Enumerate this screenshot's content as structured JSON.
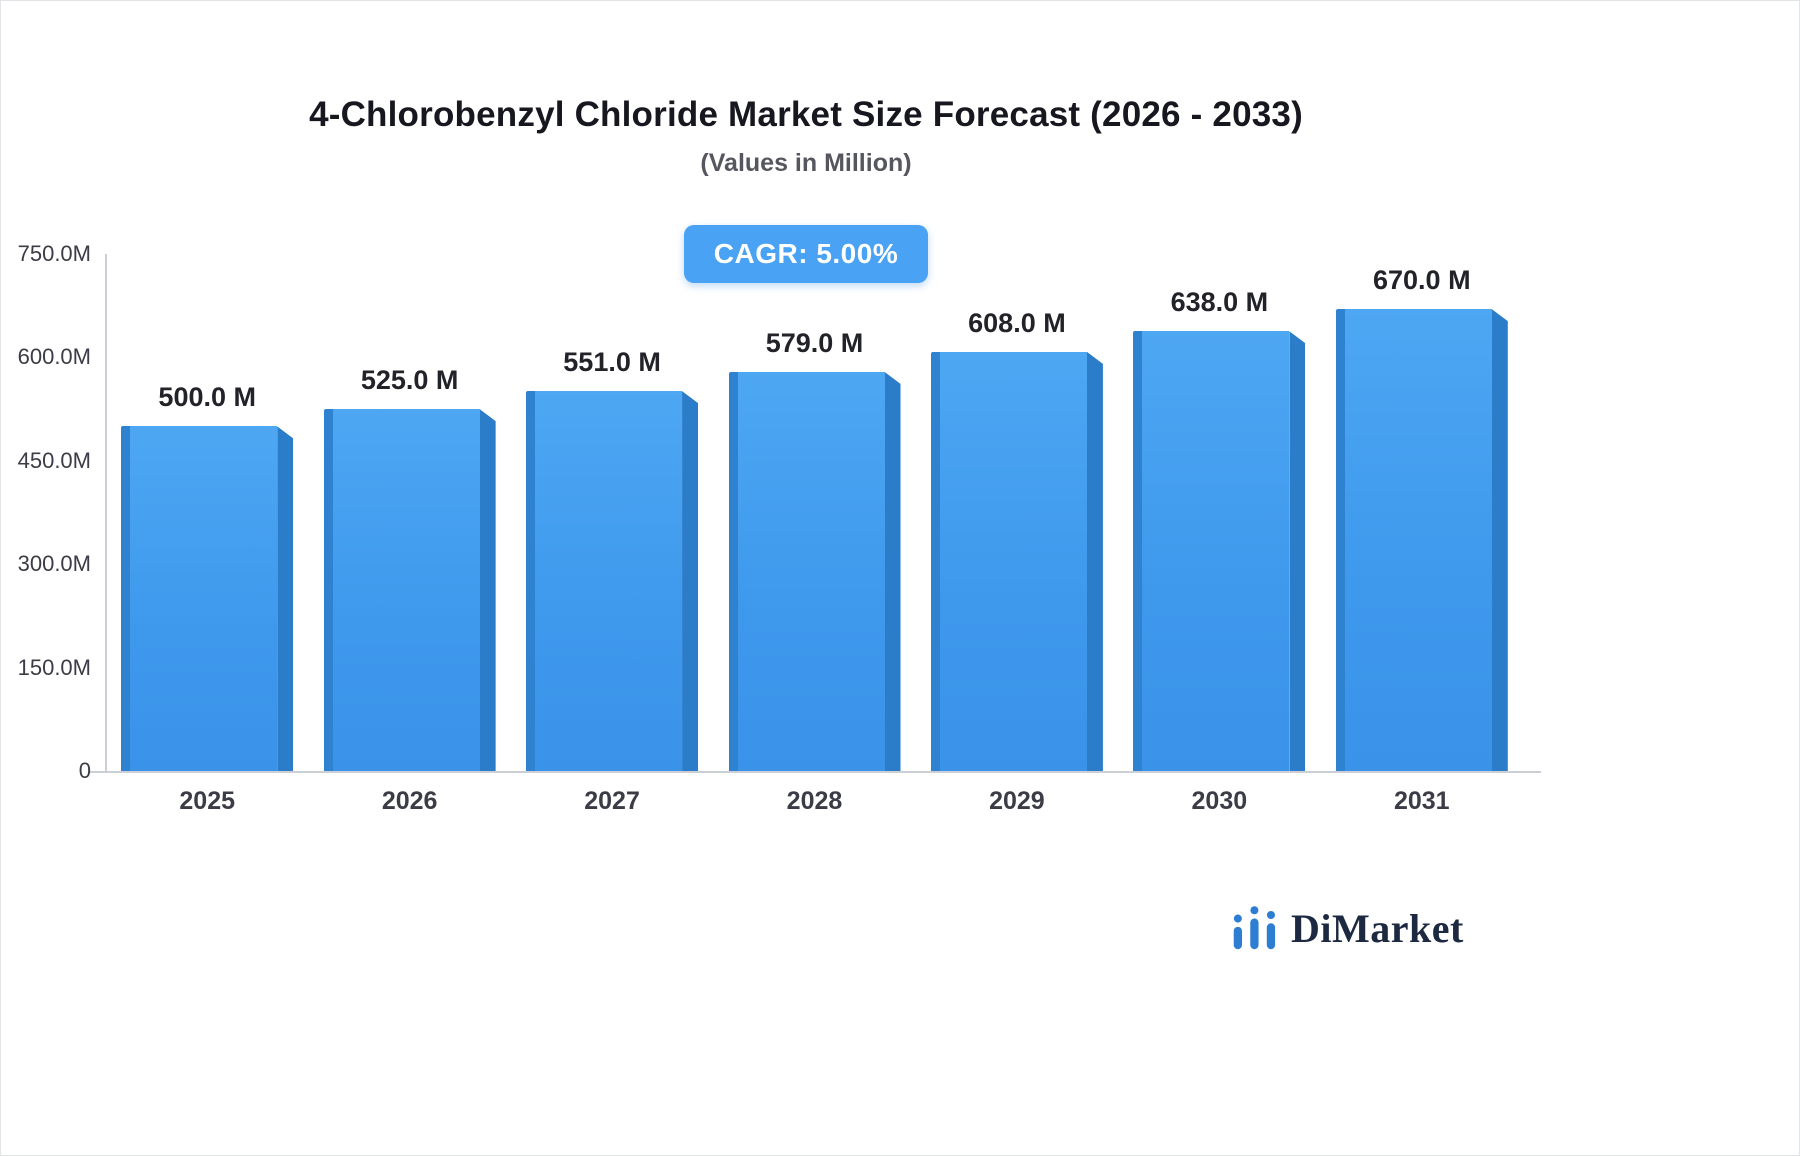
{
  "header": {
    "title": "4-Chlorobenzyl Chloride Market Size Forecast (2026 - 2033)",
    "subtitle": "(Values in Million)",
    "cagr_label": "CAGR: 5.00%"
  },
  "colors": {
    "bar_front": "#3f9ced",
    "bar_side": "#2b7cc9",
    "bar_left_stripe": "#2e82cf",
    "badge": "#4aa2f4",
    "axis": "#ccd0d6"
  },
  "chart_data": {
    "type": "bar",
    "categories": [
      "2025",
      "2026",
      "2027",
      "2028",
      "2029",
      "2030",
      "2031"
    ],
    "values": [
      500,
      525,
      551,
      579,
      608,
      638,
      670
    ],
    "value_labels": [
      "500.0 M",
      "525.0 M",
      "551.0 M",
      "579.0 M",
      "608.0 M",
      "638.0 M",
      "670.0 M"
    ],
    "title": "4-Chlorobenzyl Chloride Market Size Forecast (2026 - 2033)",
    "xlabel": "",
    "ylabel": "",
    "ylim": [
      0,
      750
    ],
    "yticks": [
      {
        "value": 0,
        "label": "0"
      },
      {
        "value": 150,
        "label": "150.0M"
      },
      {
        "value": 300,
        "label": "300.0M"
      },
      {
        "value": 450,
        "label": "450.0M"
      },
      {
        "value": 600,
        "label": "600.0M"
      },
      {
        "value": 750,
        "label": "750.0M"
      }
    ],
    "grid": false,
    "legend": false
  },
  "logo": {
    "text": "DiMarket",
    "icon": "bar-chart-icon"
  }
}
